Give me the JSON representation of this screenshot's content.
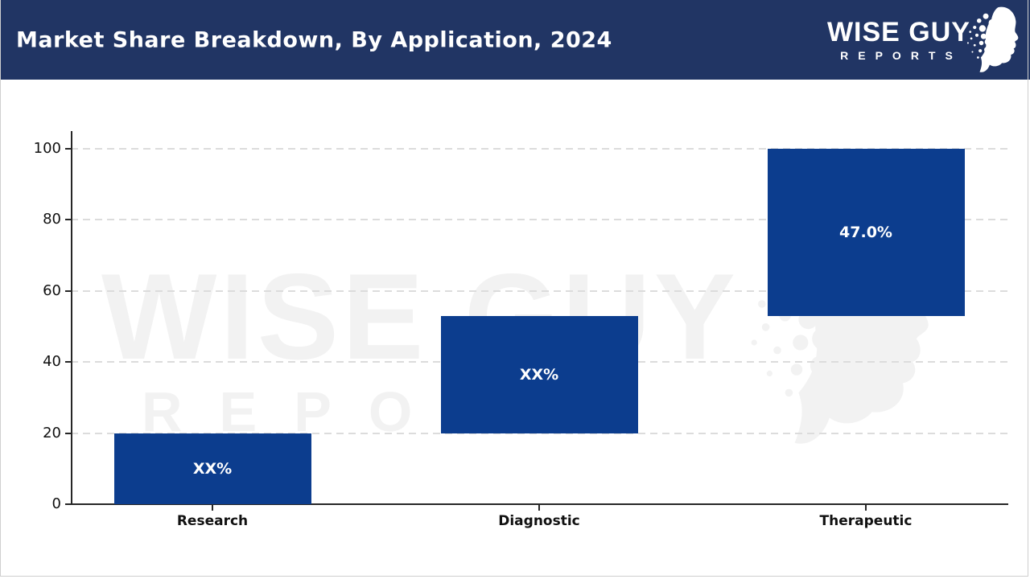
{
  "header": {
    "title": "Market Share Breakdown, By Application, 2024"
  },
  "logo": {
    "line1": "WISE GUY",
    "line2": "REPORTS"
  },
  "watermark": {
    "line1": "WISE GUY",
    "line2": "REPORTS"
  },
  "chart_data": {
    "type": "bar",
    "subtype": "waterfall-floating-bars",
    "title": "Market Share Breakdown, By Application, 2024",
    "categories": [
      "Research",
      "Diagnostic",
      "Therapeutic"
    ],
    "series": [
      {
        "name": "Market Share (%)",
        "starts": [
          0,
          20,
          53
        ],
        "values": [
          20,
          33,
          47
        ]
      }
    ],
    "bar_labels": [
      "XX%",
      "XX%",
      "47.0%"
    ],
    "xlabel": "",
    "ylabel": "",
    "ylim": [
      0,
      100
    ],
    "yticks": [
      0,
      20,
      40,
      60,
      80,
      100
    ],
    "grid": "horizontal-dashed",
    "legend": "none"
  },
  "colors": {
    "header_bg": "#213564",
    "bar_fill": "#0c3d8e",
    "axis": "#262626",
    "grid": "#dcdcdc",
    "tick_text": "#111111",
    "bar_label_text": "#ffffff",
    "watermark": "#f2f2f2"
  }
}
